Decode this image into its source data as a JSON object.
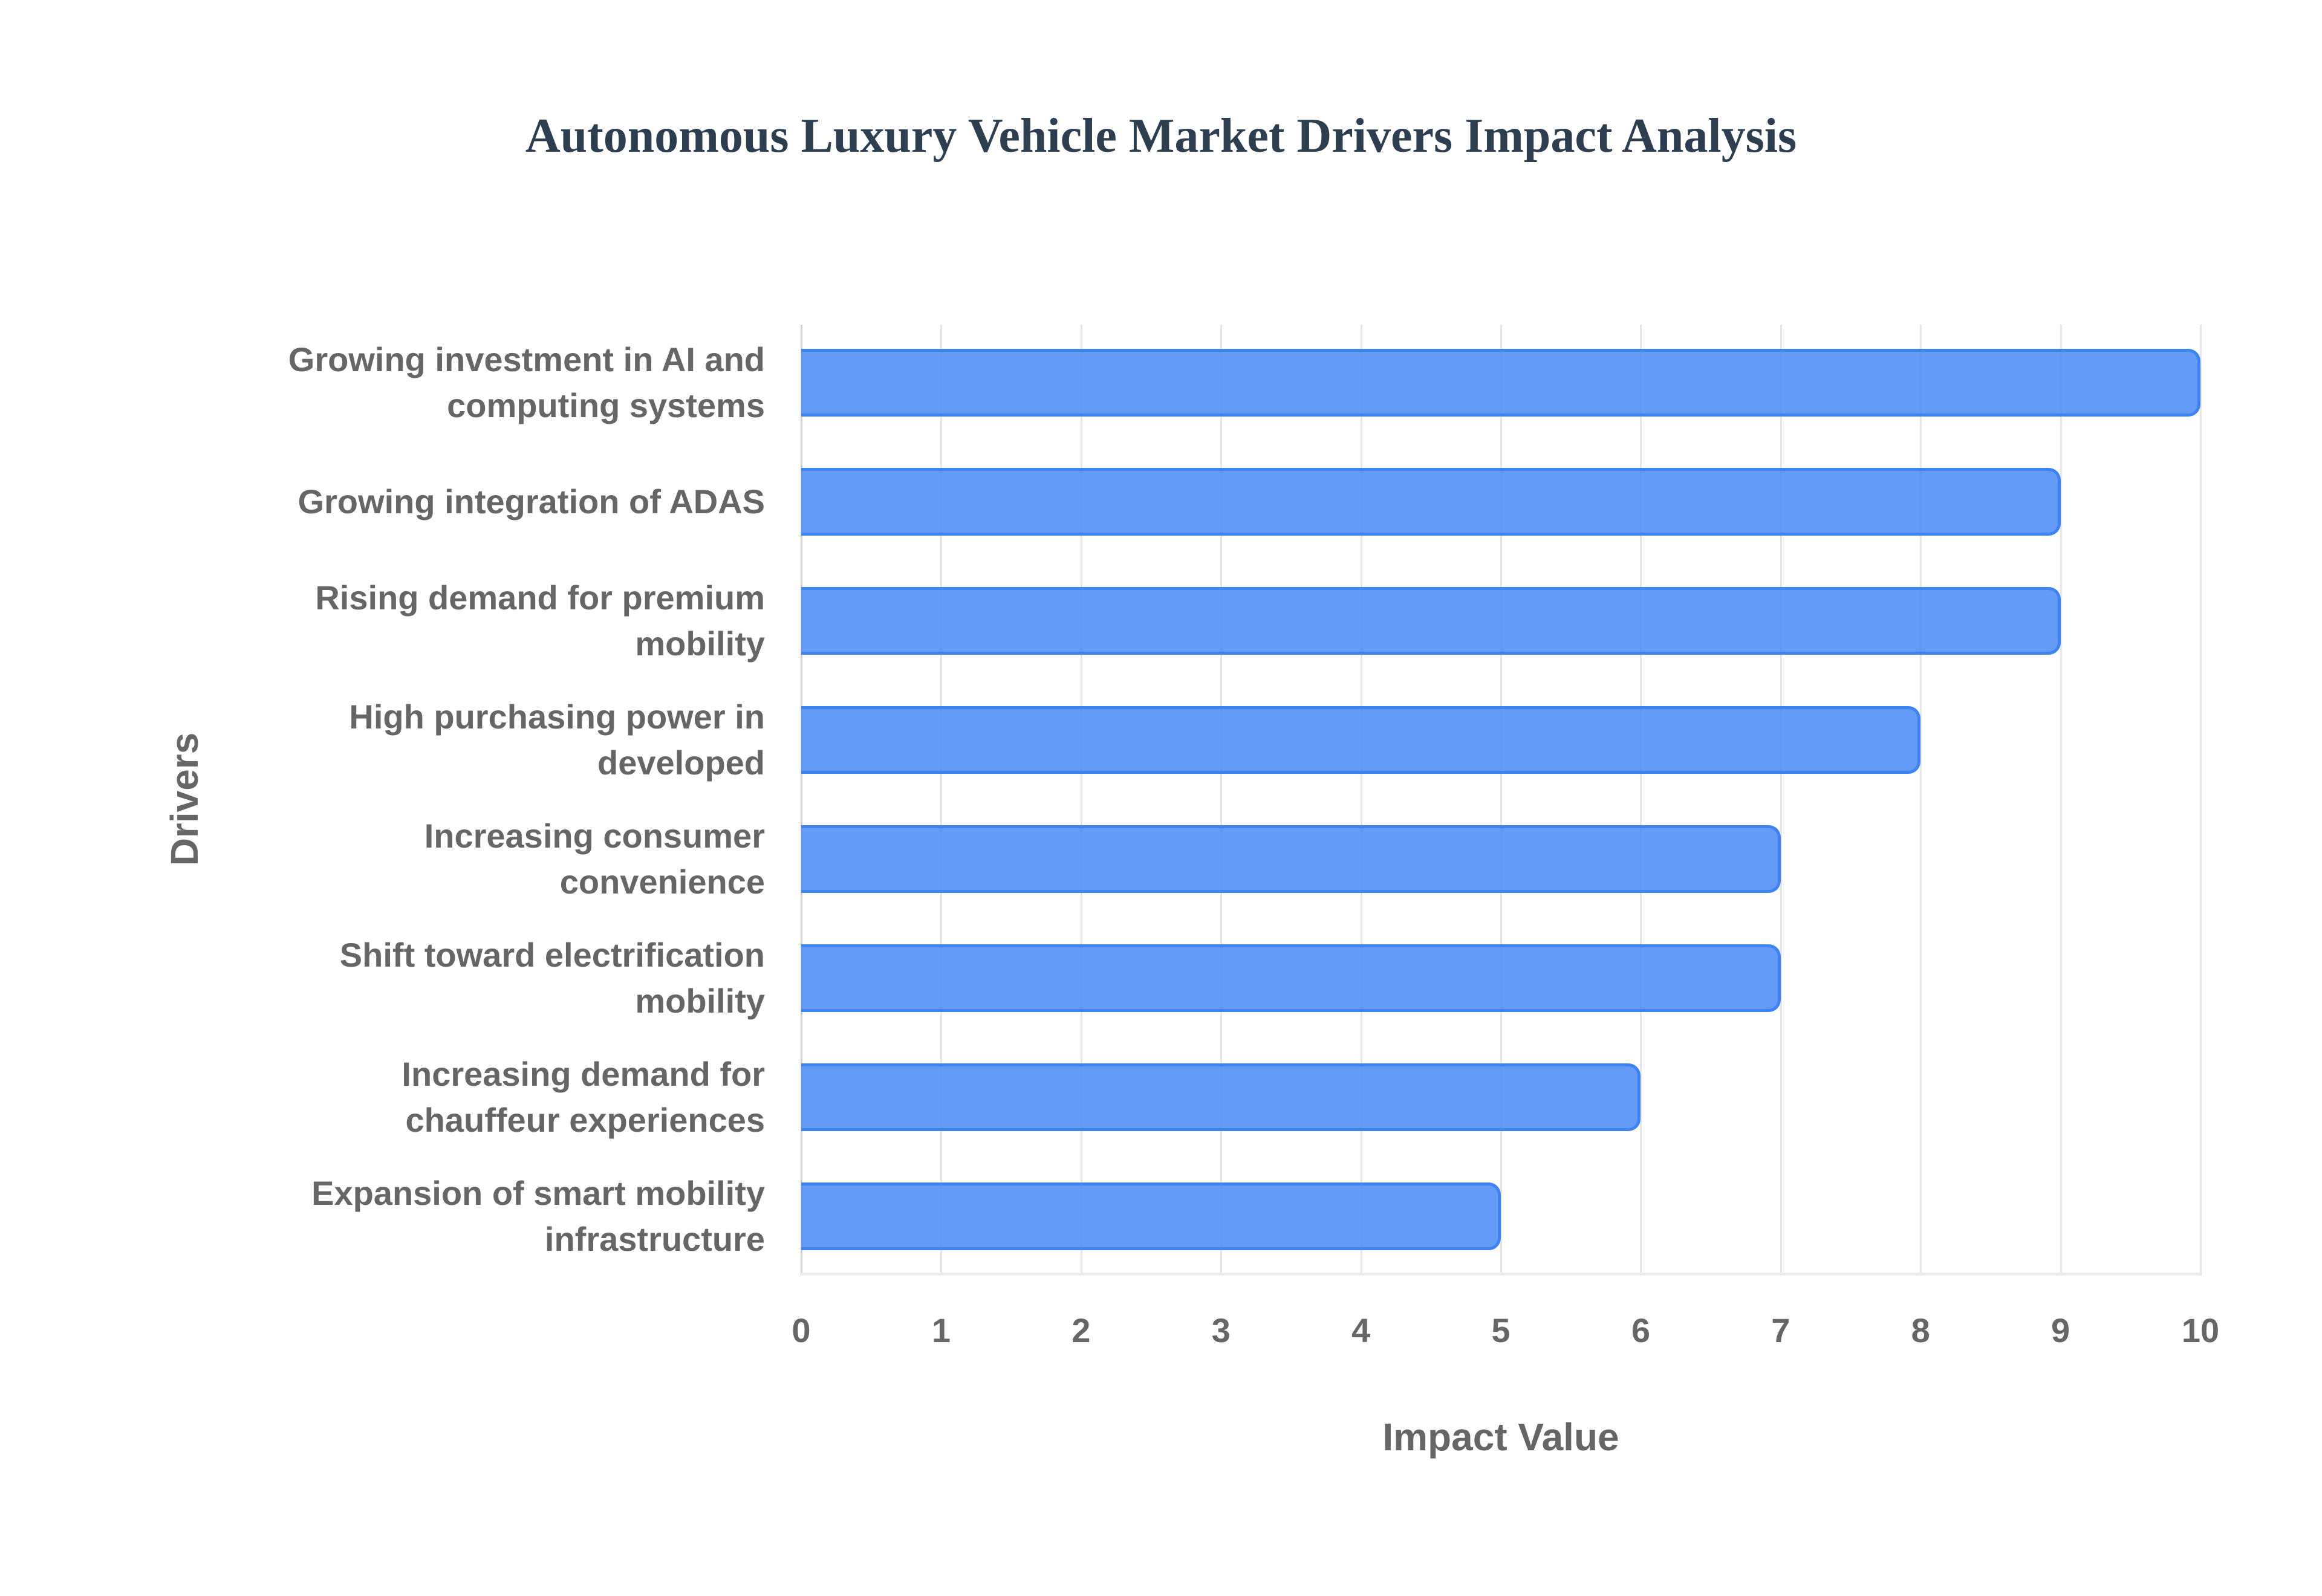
{
  "chart_data": {
    "type": "bar",
    "orientation": "horizontal",
    "title": "Autonomous Luxury Vehicle Market Drivers Impact Analysis",
    "xlabel": "Impact Value",
    "ylabel": "Drivers",
    "categories": [
      "Growing investment in AI and computing systems",
      "Growing integration of ADAS",
      "Rising demand for premium mobility",
      "High purchasing power in developed",
      "Increasing consumer convenience",
      "Shift toward electrification mobility",
      "Increasing demand for chauffeur experiences",
      "Expansion of smart mobility infrastructure"
    ],
    "values": [
      10,
      9,
      9,
      8,
      7,
      7,
      6,
      5
    ],
    "xlim": [
      0,
      10
    ],
    "xticks": [
      "0",
      "1",
      "2",
      "3",
      "4",
      "5",
      "6",
      "7",
      "8",
      "9",
      "10"
    ],
    "grid": true,
    "legend": false,
    "bar_color": "#4f8df5",
    "bar_border_color": "#3f83f0"
  },
  "labels": {
    "lines": [
      [
        "Growing investment in AI and",
        "computing systems"
      ],
      [
        "Growing integration of ADAS"
      ],
      [
        "Rising demand for premium",
        "mobility"
      ],
      [
        "High purchasing power in",
        "developed"
      ],
      [
        "Increasing consumer",
        "convenience"
      ],
      [
        "Shift toward electrification",
        "mobility"
      ],
      [
        "Increasing demand for",
        "chauffeur experiences"
      ],
      [
        "Expansion of smart mobility",
        "infrastructure"
      ]
    ]
  }
}
